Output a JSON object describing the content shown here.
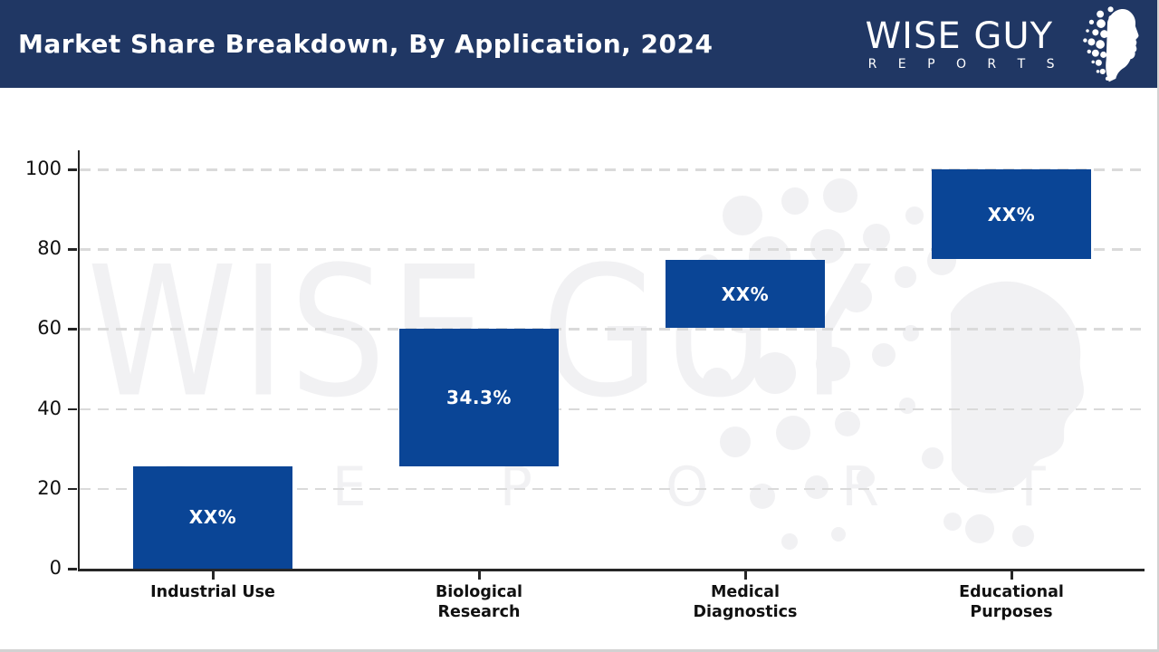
{
  "header": {
    "title": "Market Share Breakdown, By Application, 2024",
    "bg_color": "#203764",
    "logo": {
      "wordmark": "WISE GUY",
      "subtext": "R E P O R T S",
      "icon": "dotted-face-profile"
    }
  },
  "watermark": {
    "wordmark": "WISE GUY",
    "subtext": "R E P O R T S"
  },
  "chart_data": {
    "type": "bar",
    "variant": "waterfall",
    "title": "Market Share Breakdown, By Application, 2024",
    "categories": [
      "Industrial Use",
      "Biological\nResearch",
      "Medical\nDiagnostics",
      "Educational\nPurposes"
    ],
    "segments": [
      {
        "category": "Industrial Use",
        "start": 0,
        "end": 25.7,
        "value_label": "XX%"
      },
      {
        "category": "Biological Research",
        "start": 25.7,
        "end": 60.0,
        "value_label": "34.3%"
      },
      {
        "category": "Medical Diagnostics",
        "start": 60.3,
        "end": 77.3,
        "value_label": "XX%"
      },
      {
        "category": "Educational Purposes",
        "start": 77.5,
        "end": 100,
        "value_label": "XX%"
      }
    ],
    "yticks": [
      0,
      20,
      40,
      60,
      80,
      100
    ],
    "ylim": [
      0,
      104.8
    ],
    "xlabel": "",
    "ylabel": "",
    "grid": "horizontal-dashed",
    "legend": "none",
    "bar_color": "#0a4596",
    "bar_label_color": "#ffffff",
    "axis_color": "#262626",
    "gridline_color": "#dadada"
  }
}
